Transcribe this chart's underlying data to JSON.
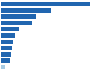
{
  "values": [
    30,
    17,
    12,
    10.5,
    6,
    4.8,
    4.2,
    3.8,
    3.4,
    3.0,
    1.5
  ],
  "bar_colors": [
    "#2166b0",
    "#2166b0",
    "#2166b0",
    "#2166b0",
    "#2166b0",
    "#2166b0",
    "#2166b0",
    "#2166b0",
    "#2166b0",
    "#2166b0",
    "#a8cce4"
  ],
  "background_color": "#ffffff",
  "xlim": [
    0,
    33
  ],
  "bar_height": 0.72
}
